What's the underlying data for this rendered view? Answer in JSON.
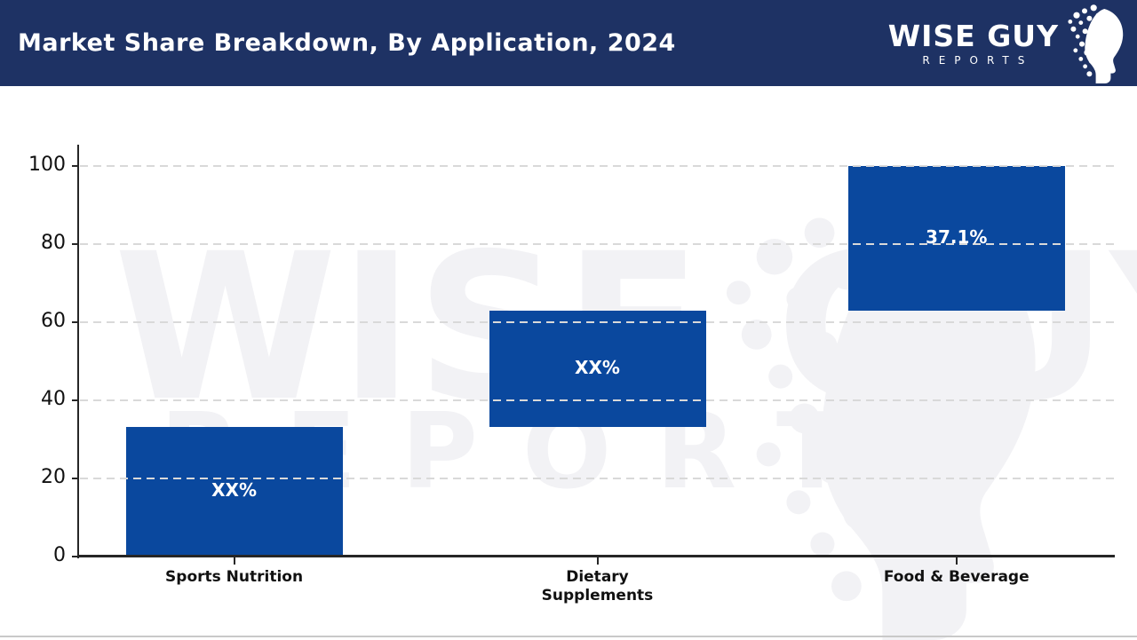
{
  "header": {
    "title": "Market Share Breakdown, By Application, 2024",
    "bg_color": "#1e3264",
    "logo": {
      "line1": "WISE GUY",
      "line2": "REPORTS"
    }
  },
  "watermark": {
    "line1": "WISE GUY",
    "line2": "REPORTS"
  },
  "chart_data": {
    "type": "bar",
    "variant": "stacked-waterfall",
    "title": "Market Share Breakdown, By Application, 2024",
    "categories": [
      "Sports Nutrition",
      "Dietary\nSupplements",
      "Food & Beverage"
    ],
    "bars": [
      {
        "category": "Sports Nutrition",
        "start": 0,
        "end": 33.1,
        "label": "XX%"
      },
      {
        "category": "Dietary Supplements",
        "start": 33.1,
        "end": 62.9,
        "label": "XX%"
      },
      {
        "category": "Food & Beverage",
        "start": 62.9,
        "end": 100,
        "label": "37.1%"
      }
    ],
    "ylim": [
      0,
      100
    ],
    "yticks": [
      0,
      20,
      40,
      60,
      80,
      100
    ],
    "grid": "horizontal-dashed",
    "legend": "none",
    "bar_color": "#0a489e",
    "bar_label_color": "#ffffff",
    "axis_color": "#262626",
    "gridline_color": "#d9d9d9"
  }
}
